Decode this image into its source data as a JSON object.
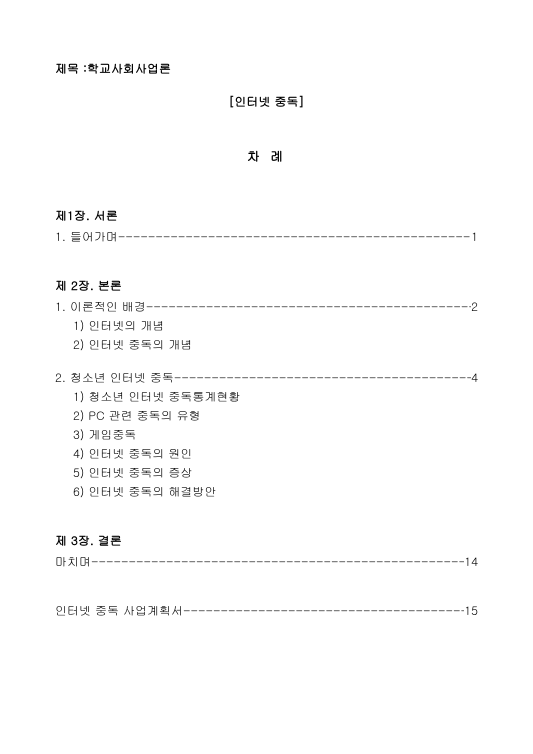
{
  "title_prefix": "제목 :",
  "title_text": "학교사회사업론",
  "subtitle": "[인터넷 중독]",
  "toc_heading": "차 례",
  "ch1": {
    "heading": "제1장. 서론",
    "item1_text": "1. 들어가며",
    "item1_page": "1"
  },
  "ch2": {
    "heading": "제 2장. 본론",
    "item1_text": "1. 이론적인 배경",
    "item1_page": "2",
    "sub1_1": "1) 인터넷의 개념",
    "sub1_2": "2) 인터넷 중독의 개념",
    "item2_text": "2. 청소년 인터넷 중독",
    "item2_page": "4",
    "sub2_1": "1) 청소년 인터넷 중독통계현황",
    "sub2_2": "2) PC 관련 중독의 유형",
    "sub2_3": "3) 게임중독",
    "sub2_4": "4) 인터넷 중독의 원인",
    "sub2_5": "5) 인터넷 중독의 증상",
    "sub2_6": "6) 인터넷 중독의 해결방안"
  },
  "ch3": {
    "heading": "제 3장. 결론",
    "item1_text": "마치며",
    "item1_page": "14"
  },
  "appendix": {
    "text": "인터넷 중독 사업계획서",
    "page": "15"
  },
  "dashes": "---------------------------------------------------------------------------------"
}
